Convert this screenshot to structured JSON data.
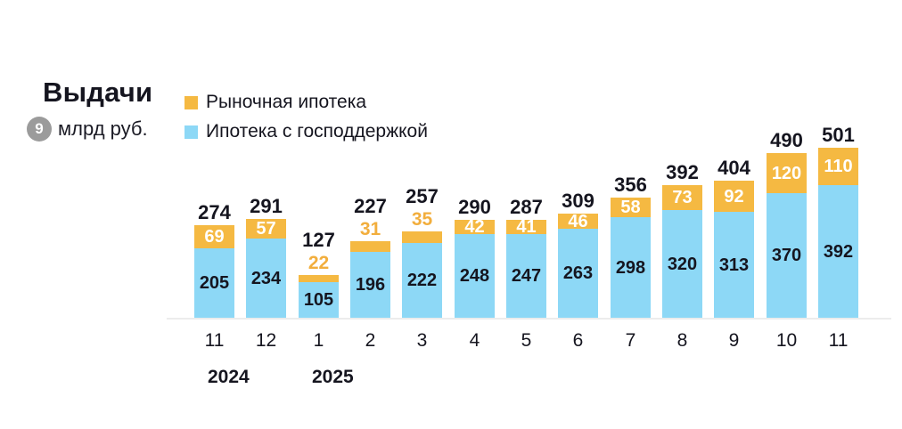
{
  "header": {
    "title": "Выдачи",
    "badge": "9",
    "unit_label": "млрд руб."
  },
  "legend": {
    "items": [
      {
        "label": "Рыночная ипотека",
        "color": "#F5B942"
      },
      {
        "label": "Ипотека с господдержкой",
        "color": "#8DD8F6"
      }
    ]
  },
  "chart_data": {
    "type": "bar",
    "stacked": true,
    "title": "Выдачи",
    "ylabel": "млрд руб.",
    "xlabel": "",
    "grid": false,
    "legend_position": "top",
    "ylim": [
      0,
      520
    ],
    "categories": [
      "11",
      "12",
      "1",
      "2",
      "3",
      "4",
      "5",
      "6",
      "7",
      "8",
      "9",
      "10",
      "11"
    ],
    "year_markers": [
      {
        "category_index": 0,
        "label": "2024"
      },
      {
        "category_index": 2,
        "label": "2025"
      }
    ],
    "series": [
      {
        "name": "Ипотека с господдержкой",
        "color": "#8DD8F6",
        "label_color": "#15151F",
        "values": [
          205,
          234,
          105,
          196,
          222,
          248,
          247,
          263,
          298,
          320,
          313,
          370,
          392
        ]
      },
      {
        "name": "Рыночная ипотека",
        "color": "#F5B942",
        "label_color": "#FFFFFF",
        "values": [
          69,
          57,
          22,
          31,
          35,
          42,
          41,
          46,
          58,
          73,
          92,
          120,
          110
        ],
        "label_placement": [
          "inside",
          "inside",
          "above",
          "above",
          "above",
          "inside",
          "inside",
          "inside",
          "inside",
          "inside",
          "inside",
          "inside",
          "inside"
        ]
      }
    ],
    "totals": [
      274,
      291,
      127,
      227,
      257,
      290,
      287,
      309,
      356,
      392,
      404,
      490,
      501
    ]
  },
  "colors": {
    "background": "#FFFFFF",
    "text_dark": "#15151F",
    "axis_line": "#ECECEC",
    "badge_bg": "#9B9B9B",
    "above_label": "#F2AE3D"
  }
}
